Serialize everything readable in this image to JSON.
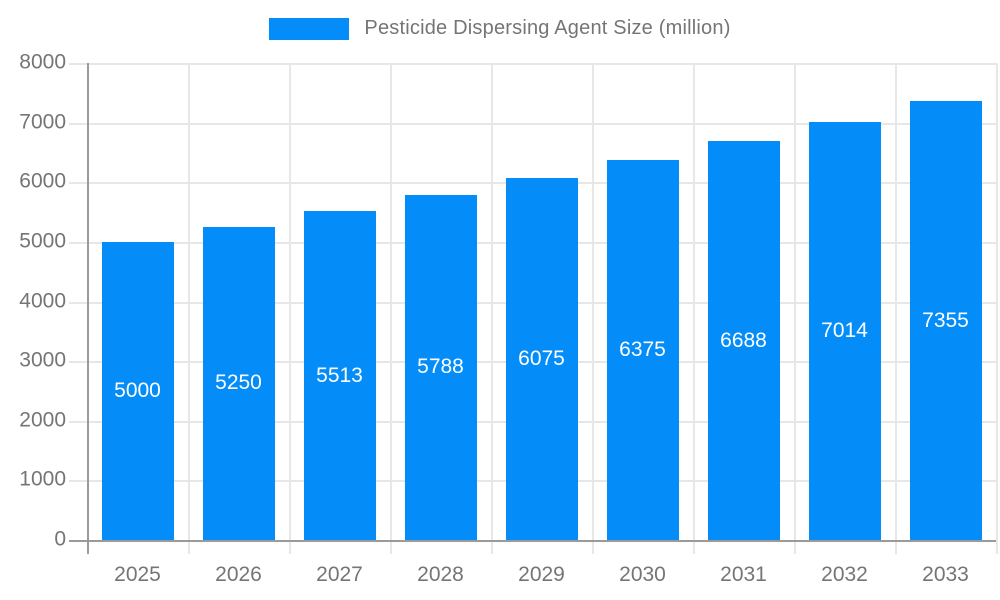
{
  "legend": {
    "label": "Pesticide Dispersing Agent Size (million)"
  },
  "colors": {
    "bar": "#048df8",
    "grid": "#e7e7e7",
    "axis": "#9a9a9a",
    "tick_label": "#757575",
    "bar_value_label": "#ffffff"
  },
  "chart_data": {
    "type": "bar",
    "title": "Pesticide Dispersing Agent Size (million)",
    "categories": [
      "2025",
      "2026",
      "2027",
      "2028",
      "2029",
      "2030",
      "2031",
      "2032",
      "2033"
    ],
    "values": [
      5000,
      5250,
      5513,
      5788,
      6075,
      6375,
      6688,
      7014,
      7355
    ],
    "xlabel": "",
    "ylabel": "",
    "ylim": [
      0,
      8000
    ],
    "yticks": [
      0,
      1000,
      2000,
      3000,
      4000,
      5000,
      6000,
      7000,
      8000
    ],
    "grid": true,
    "legend_position": "top",
    "value_label_position": "inside-center"
  }
}
